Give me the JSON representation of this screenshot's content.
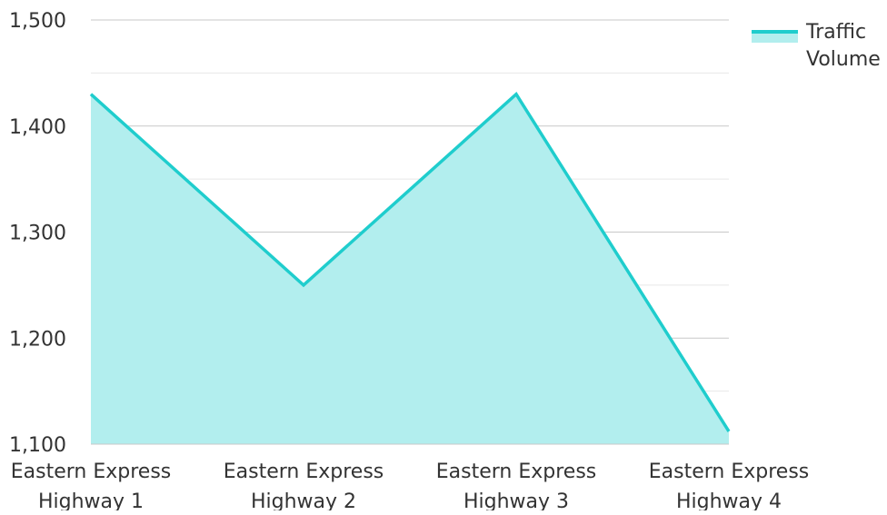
{
  "chart_data": {
    "type": "area",
    "title": "",
    "xlabel": "",
    "ylabel": "",
    "categories": [
      [
        "Eastern Express",
        "Highway 1"
      ],
      [
        "Eastern Express",
        "Highway 2"
      ],
      [
        "Eastern Express",
        "Highway 3"
      ],
      [
        "Eastern Express",
        "Highway 4"
      ]
    ],
    "series": [
      {
        "name": "Traffic Volume",
        "name_lines": [
          "Traffic",
          "Volume"
        ],
        "values": [
          1430,
          1250,
          1430,
          1112
        ]
      }
    ],
    "ylim": [
      1100,
      1500
    ],
    "y_ticks": [
      1100,
      1200,
      1300,
      1400,
      1500
    ],
    "y_tick_labels": [
      "1,100",
      "1,200",
      "1,300",
      "1,400",
      "1,500"
    ],
    "grid": true,
    "minor_grid": true,
    "legend": "top-right",
    "colors": {
      "line": "#1fcdcd",
      "fill": "#b2eeee",
      "grid_major": "#c8c8c8",
      "grid_minor": "#e8e8e8",
      "text": "#333333"
    }
  }
}
